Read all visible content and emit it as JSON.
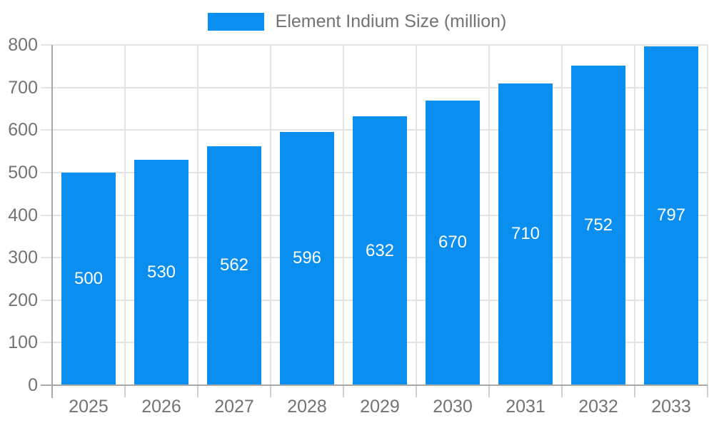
{
  "legend": {
    "label": "Element Indium Size (million)"
  },
  "chart_data": {
    "type": "bar",
    "title": "",
    "categories": [
      "2025",
      "2026",
      "2027",
      "2028",
      "2029",
      "2030",
      "2031",
      "2032",
      "2033"
    ],
    "values": [
      500,
      530,
      562,
      596,
      632,
      670,
      710,
      752,
      797
    ],
    "series": [
      {
        "name": "Element Indium Size (million)",
        "values": [
          500,
          530,
          562,
          596,
          632,
          670,
          710,
          752,
          797
        ]
      }
    ],
    "value_labels_shown": true,
    "xlabel": "",
    "ylabel": "",
    "ylim": [
      0,
      800
    ],
    "yticks": [
      0,
      100,
      200,
      300,
      400,
      500,
      600,
      700,
      800
    ],
    "grid": true,
    "legend_position": "top-center",
    "colors": {
      "bar": "#0a8ff0",
      "bar_value_label": "#ffffff",
      "axis_line": "#a8a8a8",
      "grid_line": "#e4e4e4",
      "tick_line": "#cfcfcf",
      "axis_text": "#737373",
      "legend_text": "#737373",
      "background": "#ffffff"
    }
  }
}
